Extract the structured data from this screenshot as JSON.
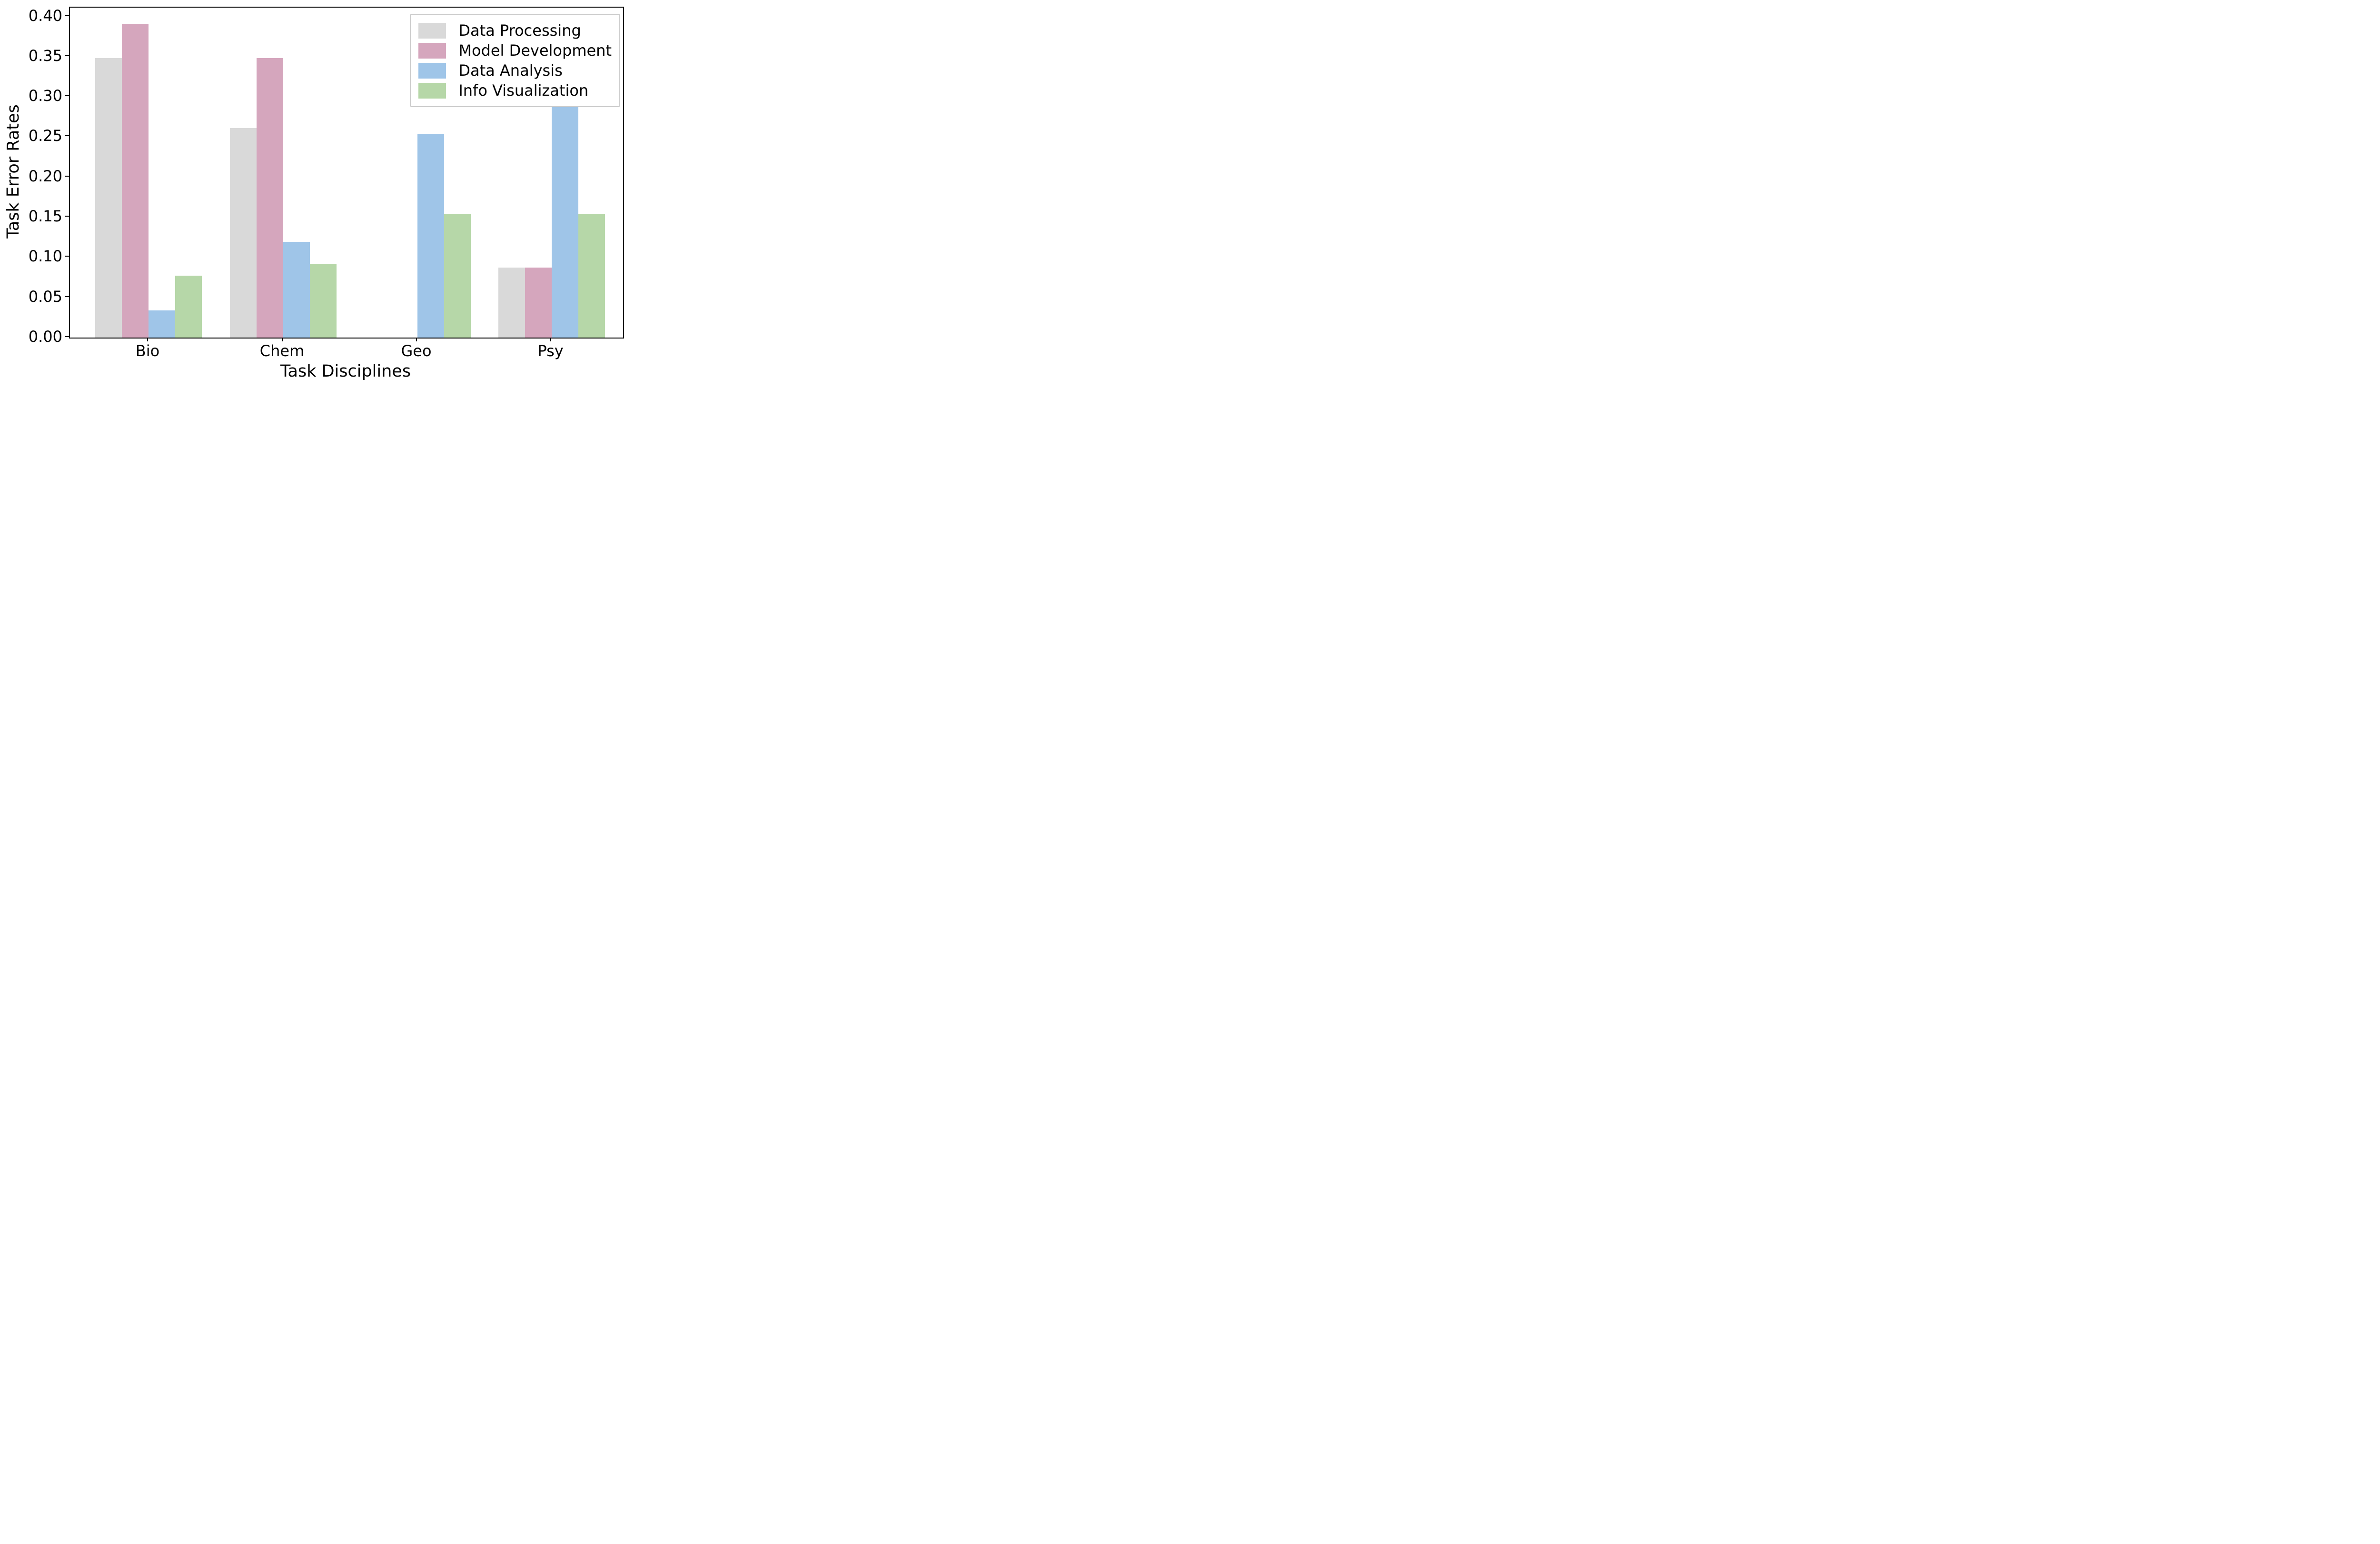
{
  "chart_data": {
    "type": "bar",
    "title": "",
    "xlabel": "Task Disciplines",
    "ylabel": "Task Error Rates",
    "categories": [
      "Bio",
      "Chem",
      "Geo",
      "Psy"
    ],
    "series": [
      {
        "name": "Data Processing",
        "color": "#d9d9d9",
        "values": [
          0.348,
          0.261,
          0.0,
          0.087
        ]
      },
      {
        "name": "Model Development",
        "color": "#d5a6bd",
        "values": [
          0.391,
          0.348,
          0.0,
          0.087
        ]
      },
      {
        "name": "Data Analysis",
        "color": "#9fc5e8",
        "values": [
          0.034,
          0.119,
          0.254,
          0.288
        ]
      },
      {
        "name": "Info Visualization",
        "color": "#b6d7a8",
        "values": [
          0.077,
          0.092,
          0.154,
          0.154
        ]
      }
    ],
    "ytick_labels": [
      "0.00",
      "0.05",
      "0.10",
      "0.15",
      "0.20",
      "0.25",
      "0.30",
      "0.35",
      "0.40"
    ],
    "yticks": [
      0.0,
      0.05,
      0.1,
      0.15,
      0.2,
      0.25,
      0.3,
      0.35,
      0.4
    ],
    "ylim": [
      0,
      0.411
    ],
    "grid": false,
    "legend_position": "upper right",
    "spine_color": "#000000",
    "text_color": "#000000"
  }
}
